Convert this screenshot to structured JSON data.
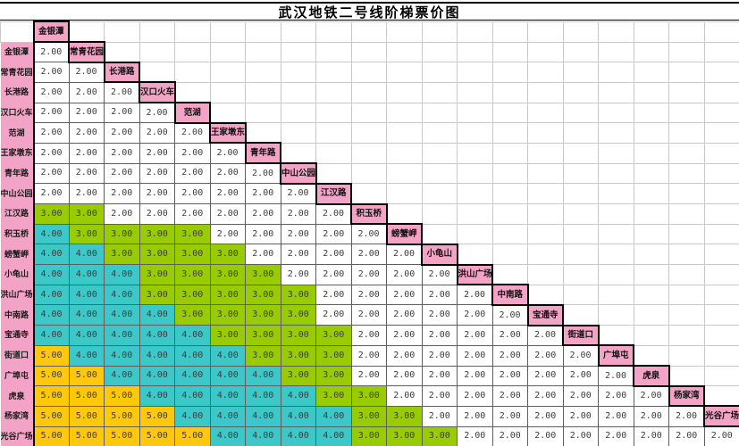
{
  "title": "武汉地铁二号线阶梯票价图",
  "colors": {
    "station_pink": "#F3A3C5",
    "fare_2": "#FFFFFF",
    "fare_3": "#99CC00",
    "fare_4": "#3CC8C8",
    "fare_5": "#FFC80A",
    "grid_light": "#C9C9C9",
    "grid_dark": "#5E5E5E",
    "border_black": "#000000"
  },
  "chart_data": {
    "type": "heatmap",
    "title": "武汉地铁二号线阶梯票价图",
    "matrix_layout": "lower-triangular",
    "stations": [
      "金银潭",
      "常青花园",
      "长港路",
      "汉口火车",
      "范湖",
      "王家墩东",
      "青年路",
      "中山公园",
      "江汉路",
      "积玉桥",
      "螃蟹岬",
      "小龟山",
      "洪山广场",
      "中南路",
      "宝通寺",
      "街道口",
      "广埠屯",
      "虎泉",
      "杨家湾",
      "光谷广场"
    ],
    "fare_values": [
      "2.00",
      "3.00",
      "4.00",
      "5.00"
    ],
    "fare_color_map": {
      "2": "#FFFFFF",
      "3": "#99CC00",
      "4": "#3CC8C8",
      "5": "#FFC80A"
    },
    "fares": [
      [
        2
      ],
      [
        2,
        2
      ],
      [
        2,
        2,
        2
      ],
      [
        2,
        2,
        2,
        2
      ],
      [
        2,
        2,
        2,
        2,
        2
      ],
      [
        2,
        2,
        2,
        2,
        2,
        2
      ],
      [
        2,
        2,
        2,
        2,
        2,
        2,
        2
      ],
      [
        2,
        2,
        2,
        2,
        2,
        2,
        2,
        2
      ],
      [
        3,
        3,
        2,
        2,
        2,
        2,
        2,
        2,
        2
      ],
      [
        4,
        3,
        3,
        3,
        3,
        2,
        2,
        2,
        2,
        2
      ],
      [
        4,
        4,
        3,
        3,
        3,
        3,
        2,
        2,
        2,
        2,
        2
      ],
      [
        4,
        4,
        4,
        3,
        3,
        3,
        3,
        2,
        2,
        2,
        2,
        2
      ],
      [
        4,
        4,
        4,
        3,
        3,
        3,
        3,
        3,
        2,
        2,
        2,
        2,
        2
      ],
      [
        4,
        4,
        4,
        4,
        3,
        3,
        3,
        3,
        2,
        2,
        2,
        2,
        2,
        2
      ],
      [
        4,
        4,
        4,
        4,
        4,
        3,
        3,
        3,
        3,
        2,
        2,
        2,
        2,
        2,
        2
      ],
      [
        5,
        4,
        4,
        4,
        4,
        4,
        3,
        3,
        3,
        2,
        2,
        2,
        2,
        2,
        2,
        2
      ],
      [
        5,
        5,
        4,
        4,
        4,
        4,
        4,
        3,
        3,
        2,
        2,
        2,
        2,
        2,
        2,
        2,
        2
      ],
      [
        5,
        5,
        5,
        4,
        4,
        4,
        4,
        4,
        3,
        3,
        2,
        2,
        2,
        2,
        2,
        2,
        2,
        2
      ],
      [
        5,
        5,
        5,
        5,
        4,
        4,
        4,
        4,
        4,
        3,
        3,
        2,
        2,
        2,
        2,
        2,
        2,
        2,
        2
      ],
      [
        5,
        5,
        5,
        5,
        5,
        4,
        4,
        4,
        4,
        3,
        3,
        3,
        2,
        2,
        2,
        2,
        2,
        2,
        2,
        2
      ]
    ]
  }
}
